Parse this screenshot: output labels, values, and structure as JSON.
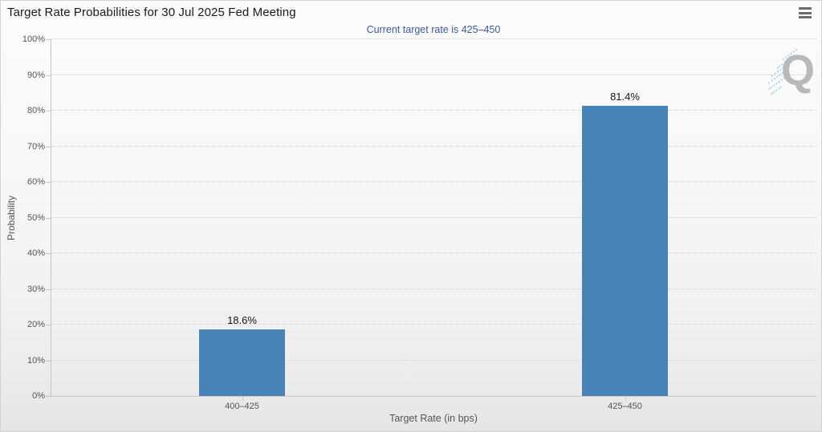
{
  "header": {
    "title": "Target Rate Probabilities for 30 Jul 2025 Fed Meeting",
    "subtitle": "Current target rate is 425–450"
  },
  "toolbar": {
    "menu_icon": "hamburger-icon"
  },
  "watermark": {
    "letter": "Q"
  },
  "colors": {
    "bar": "#4783b7",
    "subtitle_text": "#3a5aa0",
    "title_text": "#1a1a1a",
    "axis_text": "#555555",
    "grid": "#d2d2d2"
  },
  "chart_data": {
    "type": "bar",
    "title": "Target Rate Probabilities for 30 Jul 2025 Fed Meeting",
    "subtitle": "Current target rate is 425–450",
    "categories": [
      "400–425",
      "425–450"
    ],
    "values": [
      18.6,
      81.4
    ],
    "data_labels": [
      "18.6%",
      "81.4%"
    ],
    "xlabel": "Target Rate (in bps)",
    "ylabel": "Probability",
    "ylim": [
      0,
      100
    ],
    "ytick_step": 10,
    "ytick_labels": [
      "0%",
      "10%",
      "20%",
      "30%",
      "40%",
      "50%",
      "60%",
      "70%",
      "80%",
      "90%",
      "100%"
    ],
    "grid": "horizontal-dotted",
    "legend_position": "none"
  }
}
